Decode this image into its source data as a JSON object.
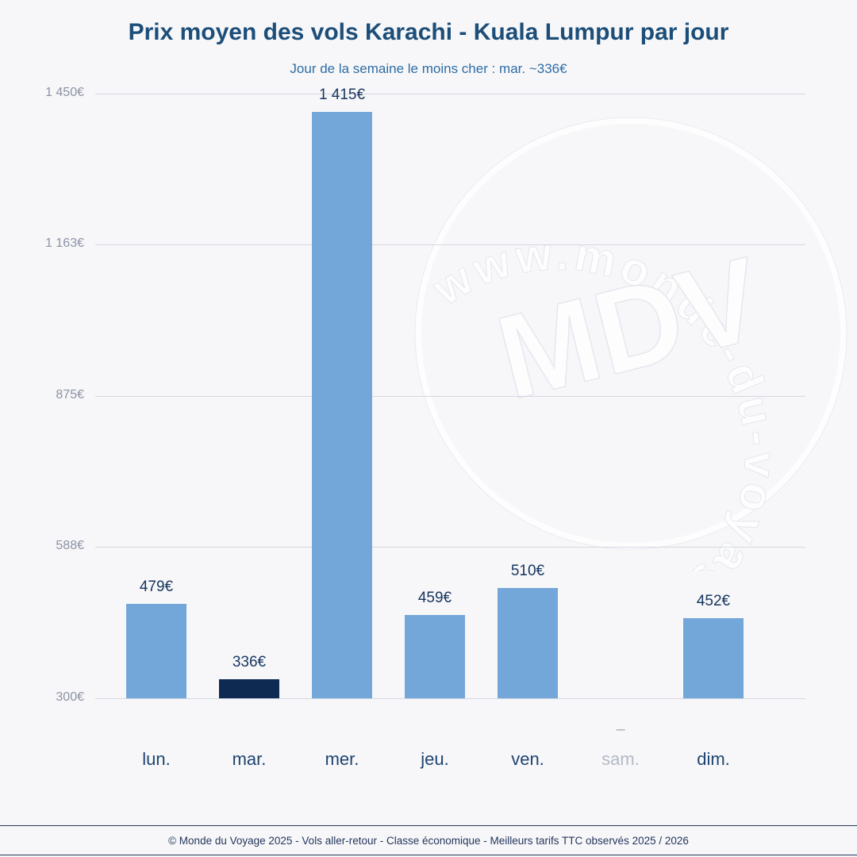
{
  "chart_data": {
    "type": "bar",
    "title": "Prix moyen des vols Karachi - Kuala Lumpur par jour",
    "subtitle": "Jour de la semaine le moins cher : mar. ~336€",
    "categories": [
      "lun.",
      "mar.",
      "mer.",
      "jeu.",
      "ven.",
      "sam.",
      "dim."
    ],
    "values": [
      479,
      336,
      1415,
      459,
      510,
      null,
      452
    ],
    "value_labels": [
      "479€",
      "336€",
      "1 415€",
      "459€",
      "510€",
      "–",
      "452€"
    ],
    "highlight_index": 1,
    "missing_index": 5,
    "ylim": [
      300,
      1450
    ],
    "yticks": [
      1450,
      1163,
      875,
      588,
      300
    ],
    "ytick_labels": [
      "1 450€",
      "1 163€",
      "875€",
      "588€",
      "300€"
    ],
    "grid": true,
    "legend": false,
    "xlabel": "",
    "ylabel": ""
  },
  "watermark": {
    "ring_text": "www.monde-du-voyage.com",
    "center_text": "MDV"
  },
  "footer": {
    "text": "© Monde du Voyage 2025 - Vols aller-retour - Classe économique - Meilleurs tarifs TTC observés 2025 / 2026"
  },
  "colors": {
    "background": "#f7f7f9",
    "bar": "#74a7d9",
    "bar_highlight": "#0e2a52",
    "title": "#1c4e79",
    "subtitle": "#2e6da4",
    "value_label": "#16355e",
    "x_label": "#1d4370",
    "x_label_muted": "#b4b9c6",
    "y_label": "#8d93a5",
    "gridline": "#d6d8e2",
    "footer": "#24365c"
  }
}
